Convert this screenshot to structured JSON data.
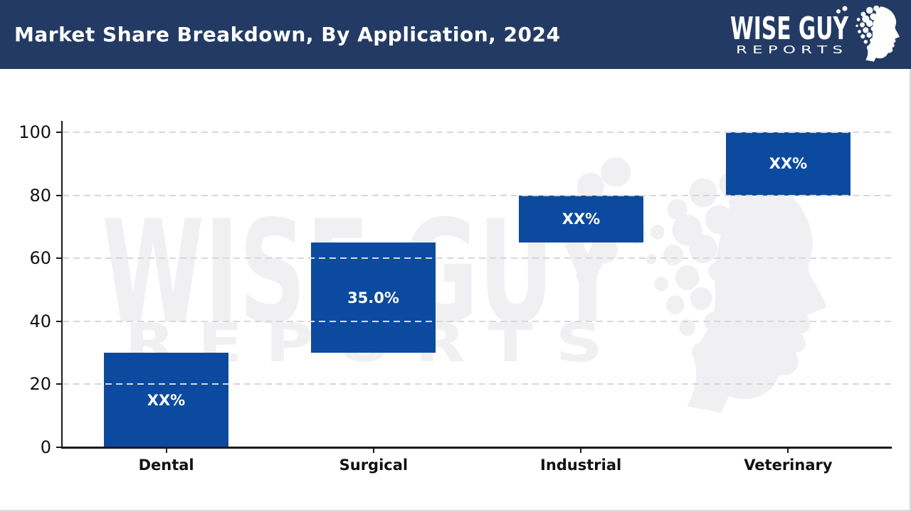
{
  "header": {
    "title": "Market Share Breakdown, By Application, 2024",
    "brand": {
      "name_line1": "WISE GUY",
      "name_line2": "R E P O R T S"
    },
    "colors": {
      "background": "#233b64",
      "text": "#ffffff"
    }
  },
  "watermark": {
    "line1": "WISE GUY",
    "line2": "R E P O R T S",
    "color": "#f0f0f2"
  },
  "chart_data": {
    "type": "bar",
    "subtype": "waterfall",
    "title": "Market Share Breakdown, By Application, 2024",
    "categories": [
      "Dental",
      "Surgical",
      "Industrial",
      "Veterinary"
    ],
    "values": [
      30,
      35,
      15,
      20
    ],
    "cumulative_start": [
      0,
      30,
      65,
      80
    ],
    "bar_labels": [
      "XX%",
      "35.0%",
      "XX%",
      "XX%"
    ],
    "xlabel": "",
    "ylabel": "",
    "ylim": [
      0,
      100
    ],
    "yticks": [
      0,
      20,
      40,
      60,
      80,
      100
    ],
    "grid": "horizontal-dashed",
    "legend": "none",
    "bar_color": "#0c4a9f",
    "bar_label_color": "#ffffff",
    "axis_color": "#1a1a1a",
    "gridline_color": "#d8d8d8"
  }
}
